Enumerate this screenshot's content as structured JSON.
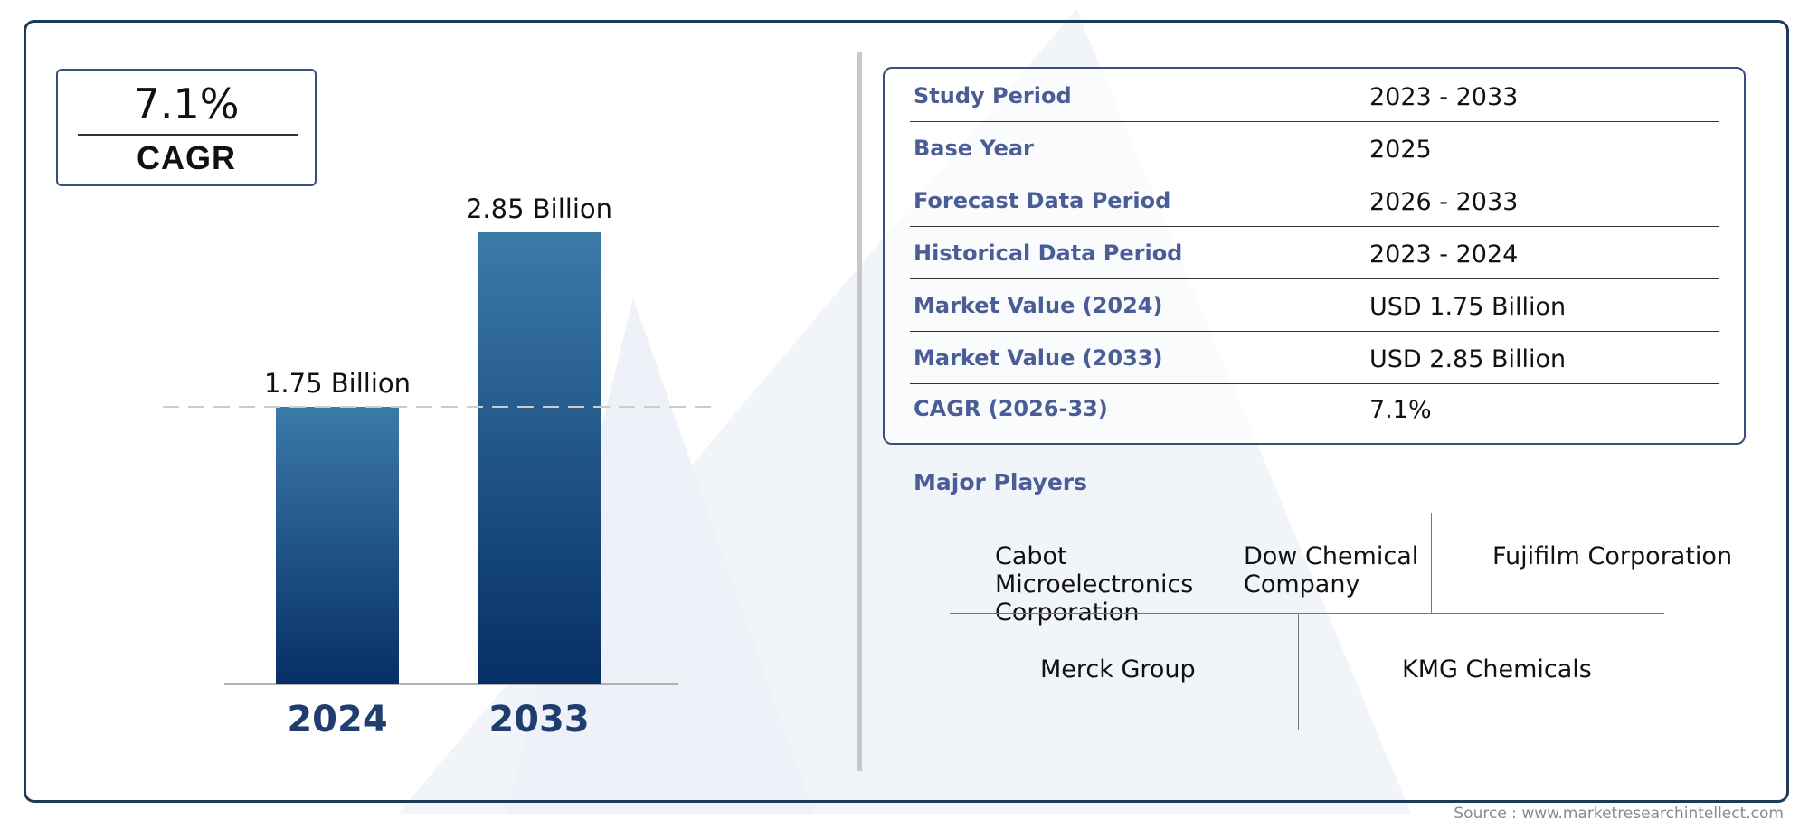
{
  "cagr": {
    "value": "7.1%",
    "label": "CAGR"
  },
  "chart_data": {
    "type": "bar",
    "categories": [
      "2024",
      "2033"
    ],
    "values": [
      1.75,
      2.85
    ],
    "data_labels": [
      "1.75 Billion",
      "2.85 Billion"
    ],
    "ylim": [
      0,
      2.85
    ],
    "reference_line": {
      "value": 1.75,
      "style": "dashed"
    },
    "grid": false,
    "colors": {
      "bar_top": "#3b7aa8",
      "bar_bottom": "#062f66",
      "tick": "#1f3d6e"
    }
  },
  "table": [
    {
      "label": "Study Period",
      "value": "2023 - 2033"
    },
    {
      "label": "Base Year",
      "value": "2025"
    },
    {
      "label": "Forecast Data Period",
      "value": "2026 - 2033"
    },
    {
      "label": "Historical Data Period",
      "value": "2023 - 2024"
    },
    {
      "label": "Market Value (2024)",
      "value": "USD 1.75 Billion"
    },
    {
      "label": "Market Value (2033)",
      "value": "USD 2.85 Billion"
    },
    {
      "label": "CAGR (2026-33)",
      "value": "7.1%"
    }
  ],
  "players": {
    "title": "Major Players",
    "names": [
      "Cabot Microelectronics Corporation",
      "Dow Chemical Company",
      "Fujifilm Corporation",
      "Merck Group",
      "KMG Chemicals"
    ]
  },
  "source": "Source : www.marketresearchintellect.com"
}
